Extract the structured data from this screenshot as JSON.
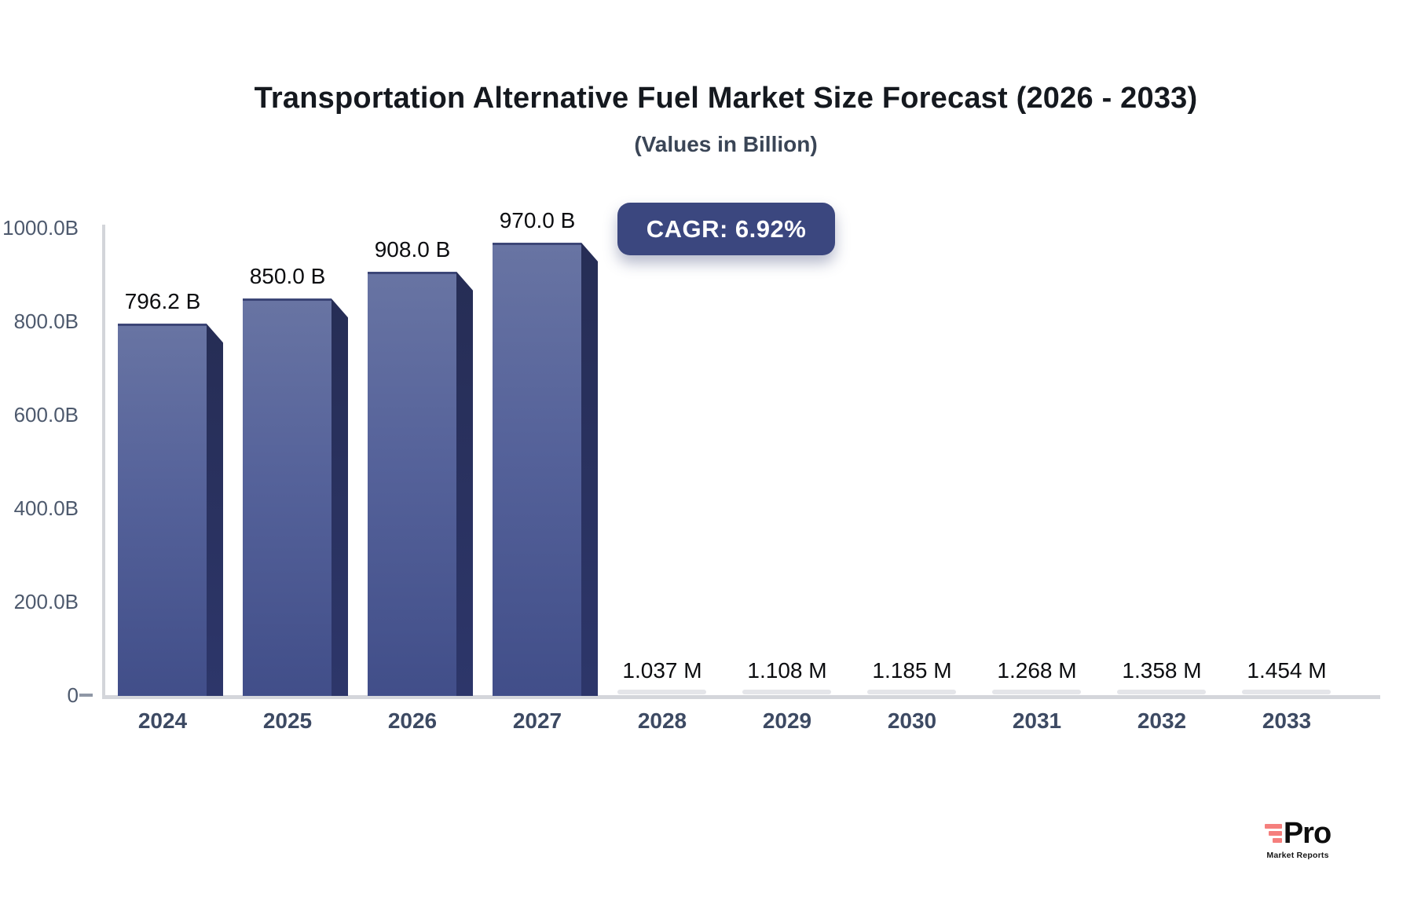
{
  "header": {
    "title": "Transportation Alternative Fuel Market Size Forecast (2026 - 2033)",
    "subtitle": "(Values in Billion)"
  },
  "cagr_badge": {
    "label": "CAGR: 6.92%",
    "bg_color": "#3b477f",
    "text_color": "#ffffff"
  },
  "chart_data": {
    "type": "bar",
    "title": "Transportation Alternative Fuel Market Size Forecast (2026 - 2033)",
    "subtitle": "(Values in Billion)",
    "cagr": "6.92%",
    "categories": [
      "2024",
      "2025",
      "2026",
      "2027",
      "2028",
      "2029",
      "2030",
      "2031",
      "2032",
      "2033"
    ],
    "values": [
      796.2,
      850.0,
      908.0,
      970.0,
      0.001037,
      0.001108,
      0.001185,
      0.001268,
      0.001358,
      0.001454
    ],
    "value_labels": [
      "796.2 B",
      "850.0 B",
      "908.0 B",
      "970.0 B",
      "1.037 M",
      "1.108 M",
      "1.185 M",
      "1.268 M",
      "1.358 M",
      "1.454 M"
    ],
    "ylim": [
      0,
      1000
    ],
    "y_tick_labels": [
      "1000.0B",
      "800.0B",
      "600.0B",
      "400.0B",
      "200.0B",
      "0"
    ],
    "grid": false,
    "legend": false,
    "colors": {
      "bar_front_top": "#6874a3",
      "bar_front_mid": "#55629a",
      "bar_front_bottom": "#414e89",
      "bar_top_edge": "#3c4677",
      "bar_side_top": "#262d55",
      "bar_side_bottom": "#2d366a",
      "stub": "#e4e5e9",
      "axis": "#d4d6db"
    }
  },
  "logo": {
    "name": "Pro Market Reports",
    "text": "Pro",
    "subtext": "Market Reports",
    "accent_color": "#f57f7d"
  }
}
